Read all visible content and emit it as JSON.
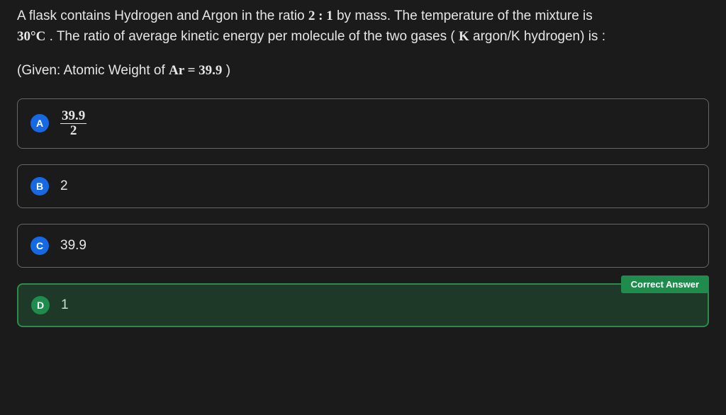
{
  "question": {
    "line1_a": "A flask contains Hydrogen and Argon in the ratio ",
    "ratio": "2 : 1",
    "line1_b": " by mass. The temperature of the mixture is",
    "temp": "30°C",
    "line2_a": ". The ratio of average kinetic energy per molecule of the two gases ( ",
    "k": "K",
    "line2_b": " argon/K hydrogen) is :"
  },
  "given": {
    "prefix": "(Given: Atomic Weight of ",
    "ar": "Ar = 39.9",
    "suffix": " )"
  },
  "options": {
    "a": {
      "letter": "A",
      "num": "39.9",
      "den": "2"
    },
    "b": {
      "letter": "B",
      "text": "2"
    },
    "c": {
      "letter": "C",
      "text": "39.9"
    },
    "d": {
      "letter": "D",
      "text": "1"
    }
  },
  "badge": "Correct Answer",
  "colors": {
    "bg": "#1b1b1b",
    "text": "#e6e6e6",
    "option_border": "#666666",
    "marker_bg": "#1668e3",
    "correct_border": "#2c8a4a",
    "correct_fill": "rgba(44,138,74,0.28)",
    "correct_marker": "#1f8b4c",
    "correct_text": "#bfe4cc"
  }
}
